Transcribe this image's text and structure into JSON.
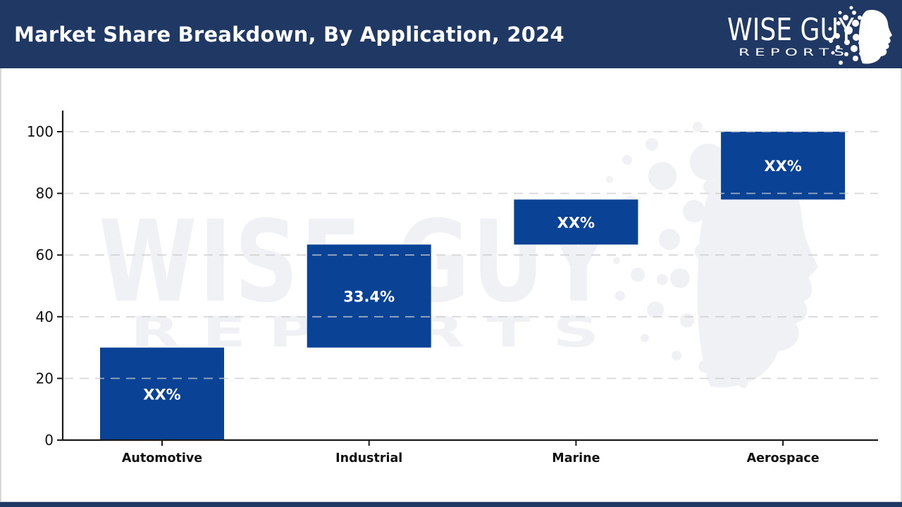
{
  "header": {
    "title": "Market Share Breakdown, By Application, 2024",
    "bg_color": "#1f3864",
    "logo": {
      "line1": "WISE GUY",
      "line2": "R E P O R T S"
    }
  },
  "watermark": {
    "line1": "WISE GUY",
    "line2": "R E P O R T S"
  },
  "chart_data": {
    "type": "bar",
    "variant": "floating-waterfall",
    "title": "Market Share Breakdown, By Application, 2024",
    "categories": [
      "Automotive",
      "Industrial",
      "Marine",
      "Aerospace"
    ],
    "segments": [
      {
        "category": "Automotive",
        "start": 0,
        "end": 30,
        "label": "XX%"
      },
      {
        "category": "Industrial",
        "start": 30,
        "end": 63.4,
        "label": "33.4%"
      },
      {
        "category": "Marine",
        "start": 63.4,
        "end": 78,
        "label": "XX%"
      },
      {
        "category": "Aerospace",
        "start": 78,
        "end": 100,
        "label": "XX%"
      }
    ],
    "xlabel": "",
    "ylabel": "",
    "yticks": [
      0,
      20,
      40,
      60,
      80,
      100
    ],
    "ylim": [
      0,
      105
    ],
    "grid": true,
    "grid_style": "dashed",
    "legend": false,
    "bar_color": "#0a4296",
    "bar_label_color": "#ffffff",
    "axis_color": "#1a1a1a",
    "tick_label_color": "#111111",
    "grid_color": "#cccccc",
    "watermark_color": "#f0f1f4"
  }
}
